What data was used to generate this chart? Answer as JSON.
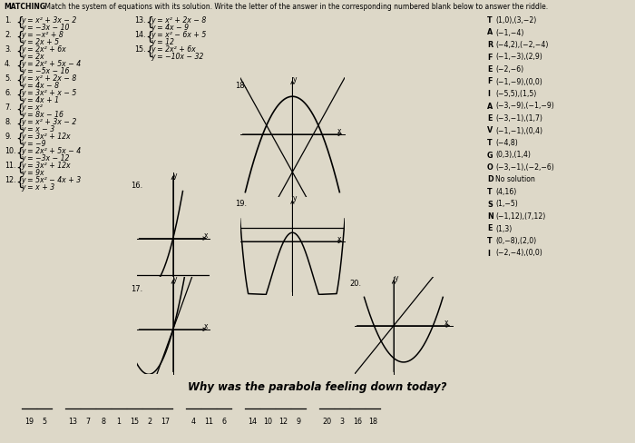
{
  "bg_color": "#ddd8c8",
  "title_bold": "MATCHING",
  "title_rest": " Match the system of equations with its solution. Write the letter of the answer in the corresponding numbered blank below to answer the riddle.",
  "problems_col1": [
    {
      "num": "1.",
      "eq1": "y = x² + 3x − 2",
      "eq2": "y = −3x − 10"
    },
    {
      "num": "2.",
      "eq1": "y = −x² + 8",
      "eq2": "y = 2x + 5"
    },
    {
      "num": "3.",
      "eq1": "y = 2x² + 6x",
      "eq2": "y = 2x"
    },
    {
      "num": "4.",
      "eq1": "y = 2x² + 5x − 4",
      "eq2": "y = −5x − 16"
    },
    {
      "num": "5.",
      "eq1": "y = x² + 2x − 8",
      "eq2": "y = 4x − 8"
    },
    {
      "num": "6.",
      "eq1": "y = 3x² + x − 5",
      "eq2": "y = 4x + 1"
    },
    {
      "num": "7.",
      "eq1": "y = x²",
      "eq2": "y = 8x − 16"
    },
    {
      "num": "8.",
      "eq1": "y = x² + 3x − 2",
      "eq2": "y = x − 3"
    },
    {
      "num": "9.",
      "eq1": "y = 3x² + 12x",
      "eq2": "y = −9"
    },
    {
      "num": "10.",
      "eq1": "y = 2x² + 5x − 4",
      "eq2": "y = −3x − 12"
    },
    {
      "num": "11.",
      "eq1": "y = 3x² + 12x",
      "eq2": "y = 9x"
    },
    {
      "num": "12.",
      "eq1": "y = 5x² − 4x + 3",
      "eq2": "y = x + 3"
    }
  ],
  "problems_col2": [
    {
      "num": "13.",
      "eq1": "y = x² + 2x − 8",
      "eq2": "y = 4x − 9"
    },
    {
      "num": "14.",
      "eq1": "y = x² − 6x + 5",
      "eq2": "y = 12"
    },
    {
      "num": "15.",
      "eq1": "y = 2x² + 6x",
      "eq2": "y = −10x − 32"
    }
  ],
  "answers": [
    {
      "letter": "T",
      "value": "(1,0),(3,−2)"
    },
    {
      "letter": "A",
      "value": "(−1,−4)"
    },
    {
      "letter": "R",
      "value": "(−4,2),(−2,−4)"
    },
    {
      "letter": "F",
      "value": "(−1,−3),(2,9)"
    },
    {
      "letter": "E",
      "value": "(−2,−6)"
    },
    {
      "letter": "F",
      "value": "(−1,−9),(0,0)"
    },
    {
      "letter": "I",
      "value": "(−5,5),(1,5)"
    },
    {
      "letter": "A",
      "value": "(−3,−9),(−1,−9)"
    },
    {
      "letter": "E",
      "value": "(−3,−1),(1,7)"
    },
    {
      "letter": "V",
      "value": "(−1,−1),(0,4)"
    },
    {
      "letter": "T",
      "value": "(−4,8)"
    },
    {
      "letter": "G",
      "value": "(0,3),(1,4)"
    },
    {
      "letter": "O",
      "value": "(−3,−1),(−2,−6)"
    },
    {
      "letter": "D",
      "value": "No solution"
    },
    {
      "letter": "T",
      "value": "(4,16)"
    },
    {
      "letter": "S",
      "value": "(1,−5)"
    },
    {
      "letter": "N",
      "value": "(−1,12),(7,12)"
    },
    {
      "letter": "E",
      "value": "(1,3)"
    },
    {
      "letter": "T",
      "value": "(0,−8),(2,0)"
    },
    {
      "letter": "I",
      "value": "(−2,−4),(0,0)"
    }
  ],
  "riddle": "Why was the parabola feeling down today?",
  "blank_groups": [
    [
      "19",
      "5"
    ],
    [
      "13",
      "7",
      "8",
      "1",
      "15",
      "2",
      "17"
    ],
    [
      "4",
      "11",
      "6"
    ],
    [
      "14",
      "10",
      "12",
      "9"
    ],
    [
      "20",
      "3",
      "16",
      "18"
    ]
  ]
}
